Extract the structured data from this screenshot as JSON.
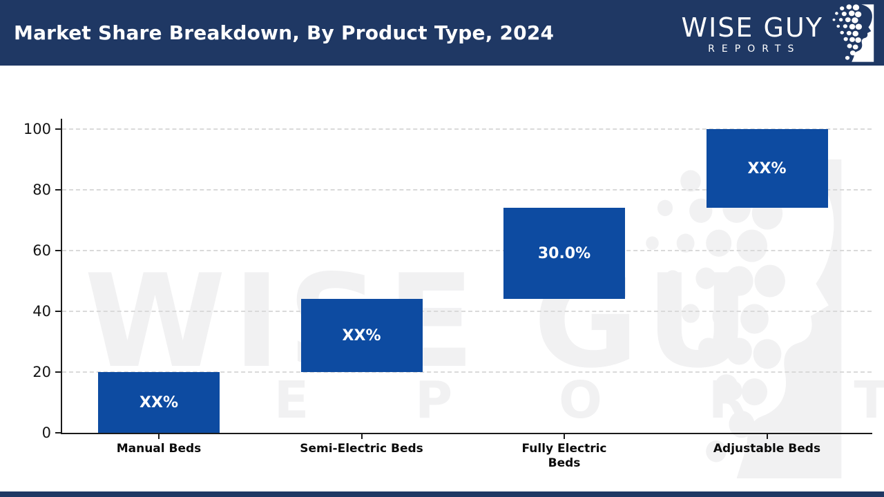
{
  "header": {
    "title": "Market Share Breakdown, By Product Type, 2024",
    "bg_color": "#1f3864",
    "logo": {
      "line1": "WISE GUY",
      "line2": "REPORTS"
    }
  },
  "watermark": {
    "line1": "WISE GU",
    "line2": "R E P O R T S"
  },
  "footer": {
    "bg_color": "#1f3864"
  },
  "chart_data": {
    "type": "bar",
    "subtype": "waterfall",
    "title": "Market Share Breakdown, By Product Type, 2024",
    "xlabel": "",
    "ylabel": "",
    "categories": [
      "Manual Beds",
      "Semi-Electric Beds",
      "Fully Electric\nBeds",
      "Adjustable Beds"
    ],
    "segments": [
      {
        "category": "Manual Beds",
        "start": 0,
        "end": 20,
        "value_label": "XX%"
      },
      {
        "category": "Semi-Electric Beds",
        "start": 20,
        "end": 44,
        "value_label": "XX%"
      },
      {
        "category": "Fully Electric Beds",
        "start": 44,
        "end": 74,
        "value_label": "30.0%"
      },
      {
        "category": "Adjustable Beds",
        "start": 74,
        "end": 100,
        "value_label": "XX%"
      }
    ],
    "y_ticks": [
      0,
      20,
      40,
      60,
      80,
      100
    ],
    "ylim": [
      0,
      103
    ],
    "grid": "horizontal dashed",
    "legend": "none",
    "bar_color": "#0d4ba1"
  }
}
